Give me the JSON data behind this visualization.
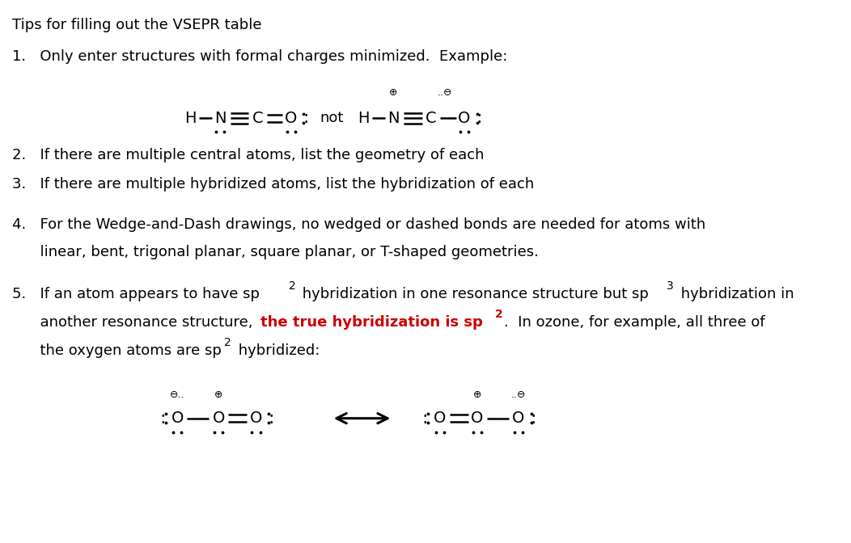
{
  "title": "Tips for filling out the VSEPR table",
  "title_fontsize": 13,
  "body_fontsize": 13,
  "background_color": "#ffffff",
  "text_color": "#000000",
  "red_color": "#cc0000",
  "item1": "1.   Only enter structures with formal charges minimized.  Example:",
  "item2": "2.   If there are multiple central atoms, list the geometry of each",
  "item3": "3.   If there are multiple hybridized atoms, list the hybridization of each",
  "item4a": "4.   For the Wedge-and-Dash drawings, no wedged or dashed bonds are needed for atoms with",
  "item4b": "      linear, bent, trigonal planar, square planar, or T-shaped geometries.",
  "item5a_pre": "5.   If an atom appears to have sp",
  "item5a_sup1": "2",
  "item5a_mid": " hybridization in one resonance structure but sp",
  "item5a_sup2": "3",
  "item5a_post": " hybridization in",
  "item5b_pre": "      another resonance structure, ",
  "item5b_red": "the true hybridization is sp",
  "item5b_red_sup": "2",
  "item5b_post": ".  In ozone, for example, all three of",
  "item5c_pre": "      the oxygen atoms are sp",
  "item5c_sup": "2",
  "item5c_post": " hybridized:"
}
